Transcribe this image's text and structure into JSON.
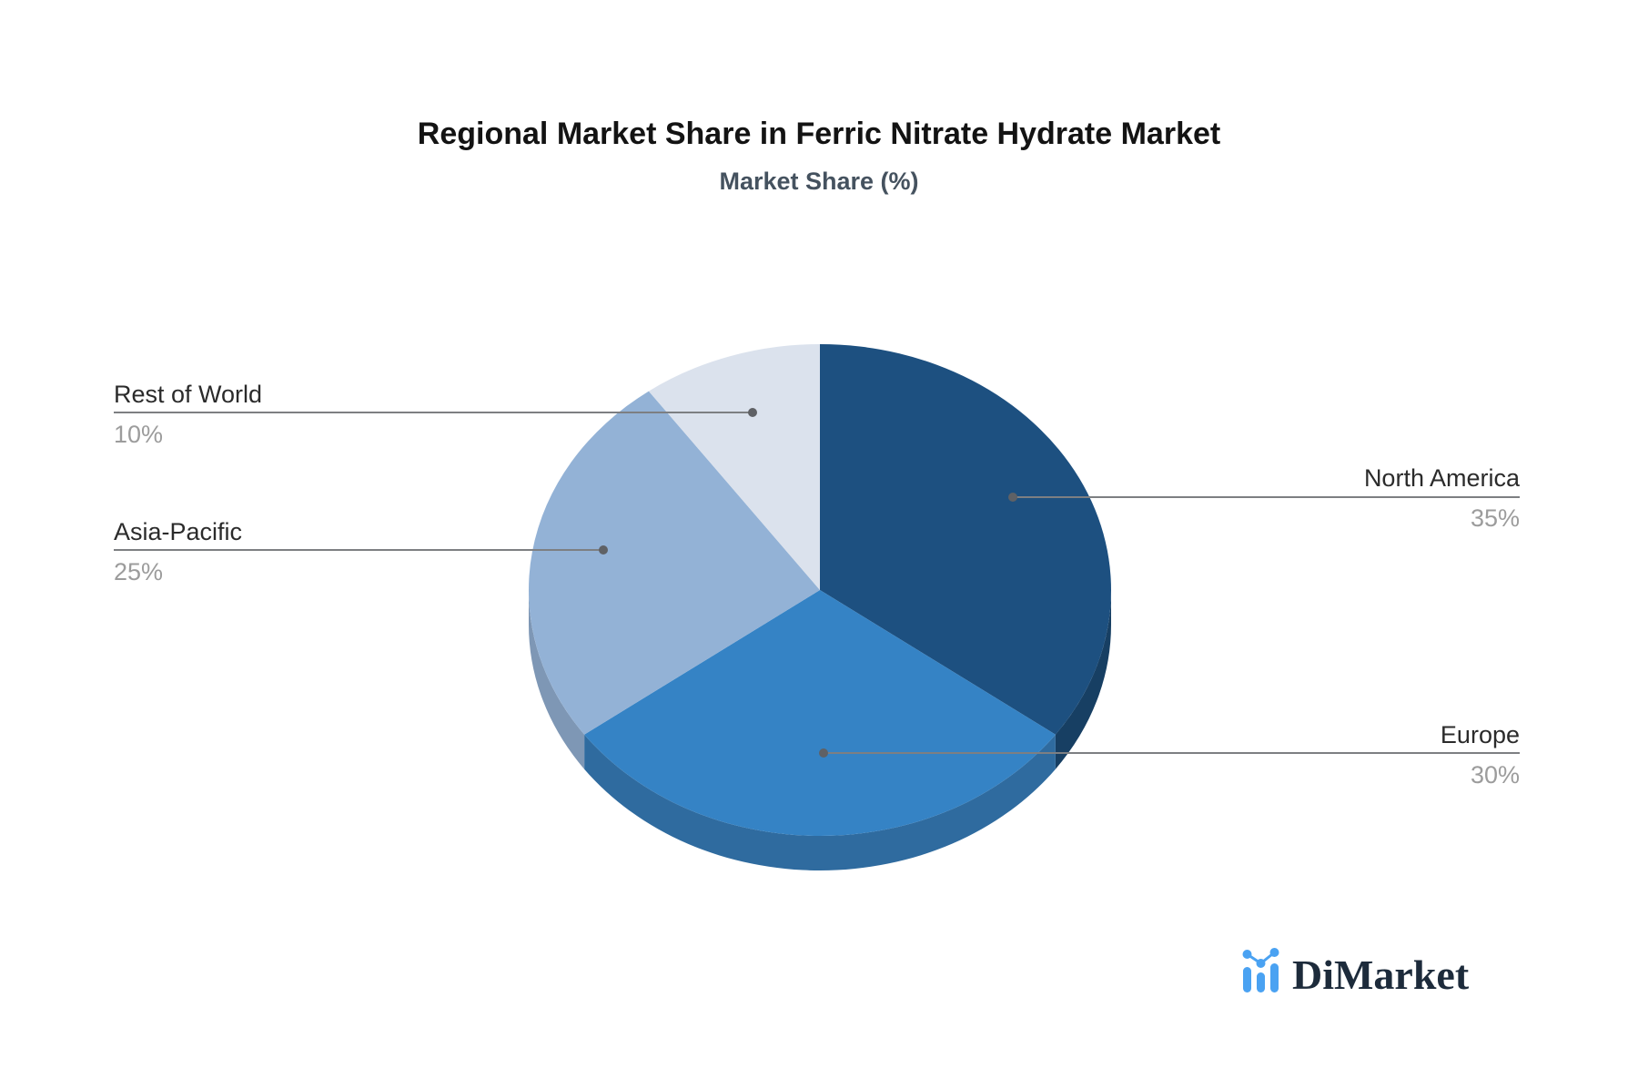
{
  "chart": {
    "title": "Regional Market Share in Ferric Nitrate Hydrate Market",
    "subtitle": "Market Share (%)"
  },
  "chart_data": {
    "type": "pie",
    "title": "Regional Market Share in Ferric Nitrate Hydrate Market",
    "subtitle": "Market Share (%)",
    "unit": "%",
    "style": "3d-pie",
    "start_angle_deg": 0,
    "direction": "clockwise",
    "legend_position": "callout-labels",
    "slices": [
      {
        "label": "North America",
        "value": 35,
        "display": "35%",
        "color": "#1d5080",
        "side_color": "#173f63"
      },
      {
        "label": "Europe",
        "value": 30,
        "display": "30%",
        "color": "#3583c5",
        "side_color": "#2f6b9f"
      },
      {
        "label": "Asia-Pacific",
        "value": 25,
        "display": "25%",
        "color": "#93b2d6",
        "side_color": "#7e97b5"
      },
      {
        "label": "Rest of World",
        "value": 10,
        "display": "10%",
        "color": "#dbe2ed",
        "side_color": "#c3cedd"
      }
    ],
    "leader_line_color": "#7d7f82",
    "label_color": "#2b2b2b",
    "value_color": "#9c9c9c"
  },
  "branding": {
    "logo_text": "DiMarket",
    "logo_text_color": "#1d2b3b",
    "logo_icon_color": "#4aa2f2"
  }
}
